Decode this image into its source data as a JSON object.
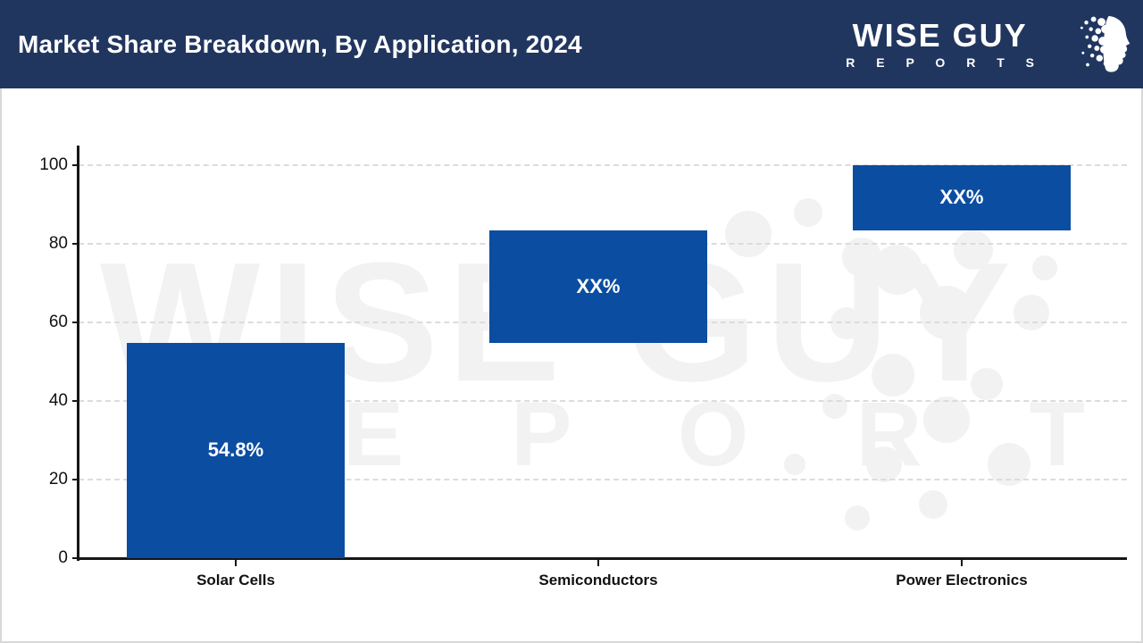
{
  "header": {
    "title": "Market Share Breakdown, By Application, 2024",
    "logo": {
      "wordmark": "WISE GUY",
      "subtext": "R E P O R T S",
      "icon": "wise-guy-face-icon"
    }
  },
  "watermark": {
    "line1": "WISE GUY",
    "line2": "R E P O R T S"
  },
  "colors": {
    "header_bg": "#21365f",
    "bar": "#0b4da1",
    "bar_label": "#ffffff",
    "grid": "#dcdcdc",
    "axis": "#161616",
    "panel_border": "#d8d8d8",
    "watermark": "#f2f2f2"
  },
  "chart_data": {
    "type": "bar",
    "variant": "waterfall",
    "title": "Market Share Breakdown, By Application, 2024",
    "categories": [
      "Solar Cells",
      "Semiconductors",
      "Power Electronics"
    ],
    "segments": [
      {
        "category": "Solar Cells",
        "start": 0,
        "end": 54.8,
        "label": "54.8%"
      },
      {
        "category": "Semiconductors",
        "start": 54.8,
        "end": 83.5,
        "label": "XX%"
      },
      {
        "category": "Power Electronics",
        "start": 83.5,
        "end": 100,
        "label": "XX%"
      }
    ],
    "yticks": [
      0,
      20,
      40,
      60,
      80,
      100
    ],
    "ylim": [
      0,
      105
    ],
    "xlabel": "",
    "ylabel": "",
    "legend": "none",
    "grid": {
      "horizontal": true,
      "style": "dashed"
    },
    "bar_color": "#0b4da1",
    "bar_label_color": "#ffffff"
  }
}
